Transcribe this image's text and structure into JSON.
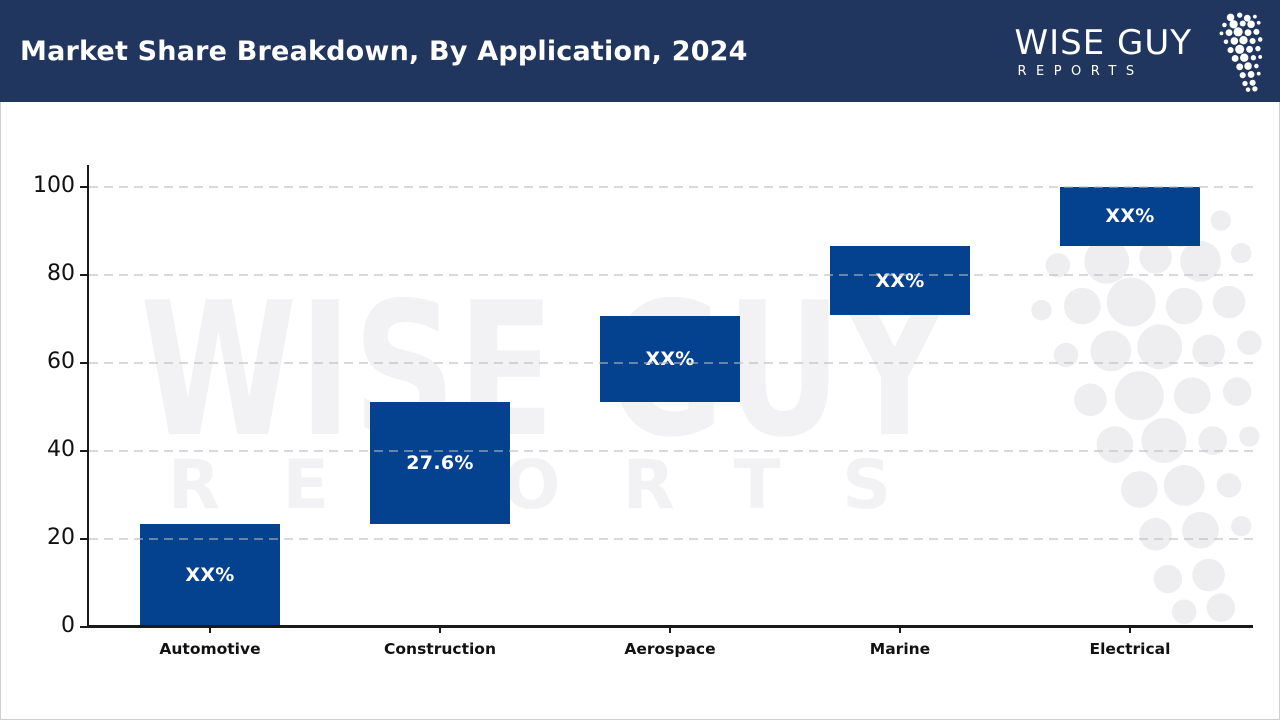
{
  "header": {
    "title": "Market Share Breakdown, By Application, 2024",
    "logo": {
      "line1": "WISE GUY",
      "line2": "REPORTS"
    }
  },
  "watermark": {
    "line1": "WISE GUY",
    "line2": "REPORTS"
  },
  "colors": {
    "header_bg": "#21365f",
    "bar": "#04418f",
    "axis": "#1a1a1a",
    "watermark": "#f2f2f4"
  },
  "chart_data": {
    "type": "bar",
    "subtype": "waterfall",
    "title": "Market Share Breakdown, By Application, 2024",
    "xlabel": "",
    "ylabel": "",
    "ylim": [
      0,
      105
    ],
    "yticks": [
      0,
      20,
      40,
      60,
      80,
      100
    ],
    "grid": true,
    "legend": false,
    "bar_color": "#04418f",
    "categories": [
      "Automotive",
      "Construction",
      "Aerospace",
      "Marine",
      "Electrical"
    ],
    "segments": [
      {
        "category": "Automotive",
        "value": 23.5,
        "start": 0,
        "end": 23.5,
        "label": "XX%"
      },
      {
        "category": "Construction",
        "value": 27.6,
        "start": 23.5,
        "end": 51.1,
        "label": "27.6%"
      },
      {
        "category": "Aerospace",
        "value": 19.7,
        "start": 51.1,
        "end": 70.8,
        "label": "XX%"
      },
      {
        "category": "Marine",
        "value": 15.8,
        "start": 70.8,
        "end": 86.6,
        "label": "XX%"
      },
      {
        "category": "Electrical",
        "value": 13.4,
        "start": 86.6,
        "end": 100,
        "label": "XX%"
      }
    ]
  }
}
